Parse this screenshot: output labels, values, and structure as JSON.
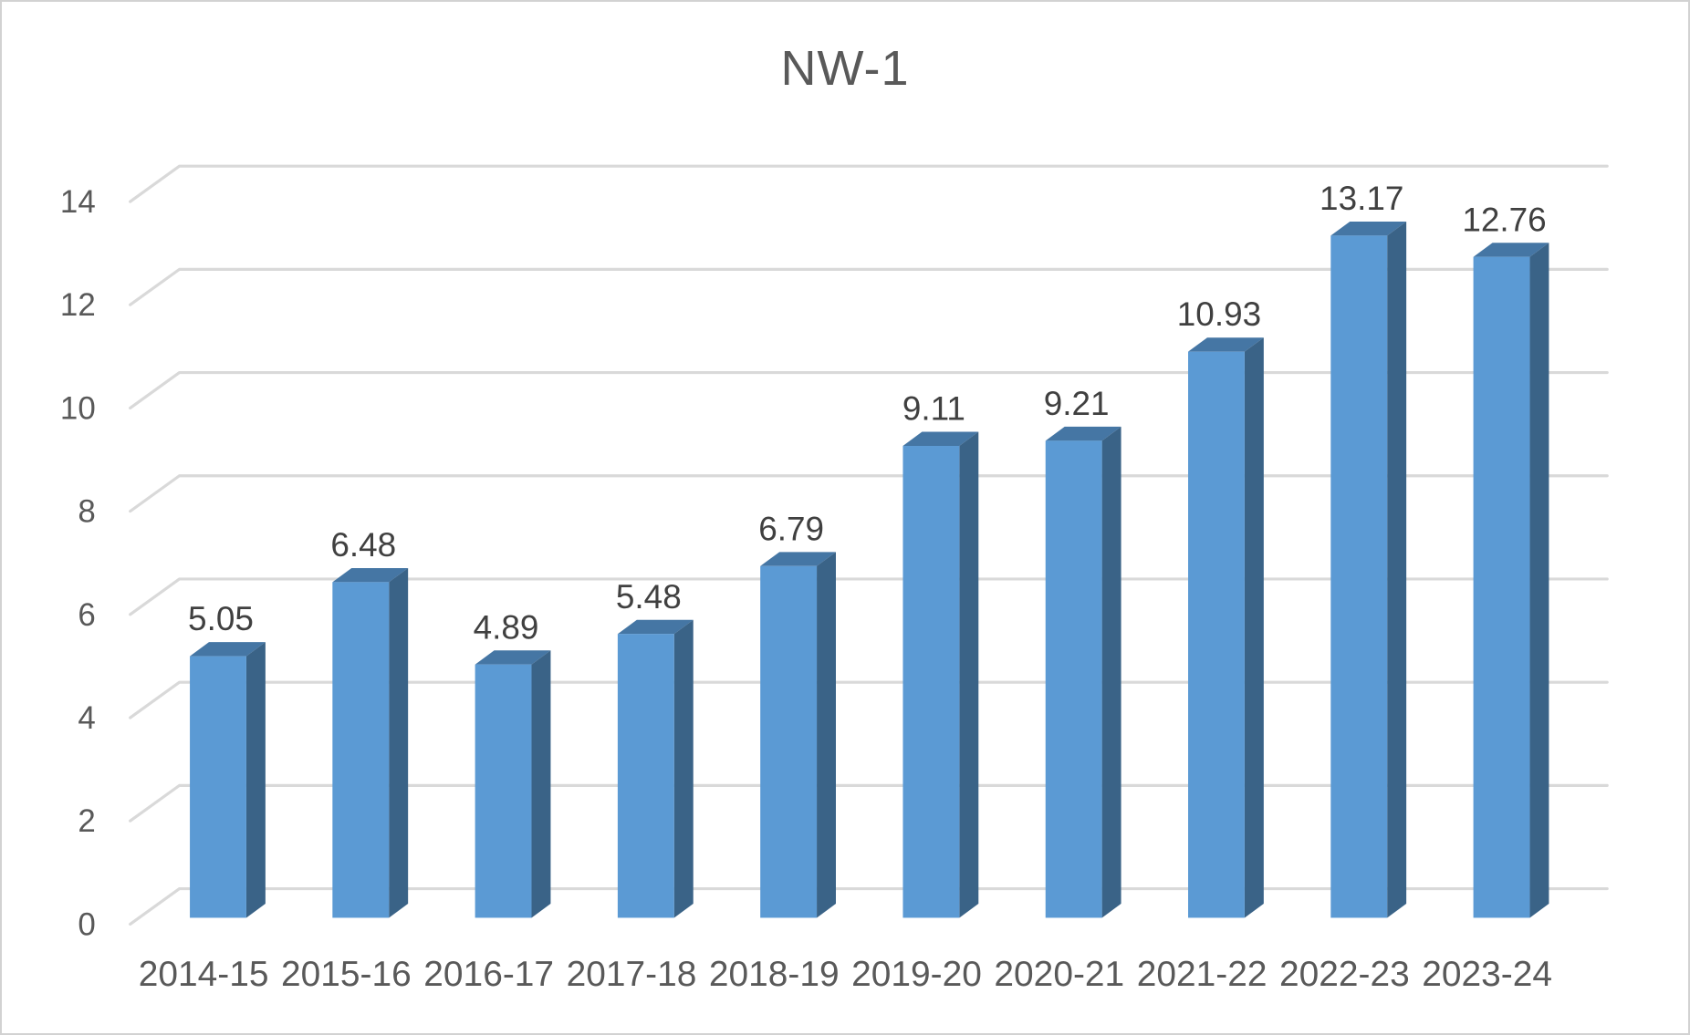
{
  "title": "NW-1",
  "chart_data": {
    "type": "bar",
    "style": "3d-column",
    "title": "NW-1",
    "xlabel": "",
    "ylabel": "",
    "categories": [
      "2014-15",
      "2015-16",
      "2016-17",
      "2017-18",
      "2018-19",
      "2019-20",
      "2020-21",
      "2021-22",
      "2022-23",
      "2023-24"
    ],
    "values": [
      5.05,
      6.48,
      4.89,
      5.48,
      6.79,
      9.11,
      9.21,
      10.93,
      13.17,
      12.76
    ],
    "data_labels": [
      "5.05",
      "6.48",
      "4.89",
      "5.48",
      "6.79",
      "9.11",
      "9.21",
      "10.93",
      "13.17",
      "12.76"
    ],
    "ylim": [
      0,
      14
    ],
    "yticks": [
      0,
      2,
      4,
      6,
      8,
      10,
      12,
      14
    ],
    "grid": true,
    "legend": false
  },
  "colors": {
    "bar_front": "#5B9AD4",
    "bar_top": "#4576A4",
    "bar_side": "#3A6387",
    "gridline": "#D9D9D9",
    "axis_text": "#595959",
    "title_text": "#595959",
    "data_label_text": "#404040",
    "background": "#FFFFFF",
    "frame_border": "#D2D2D2"
  }
}
